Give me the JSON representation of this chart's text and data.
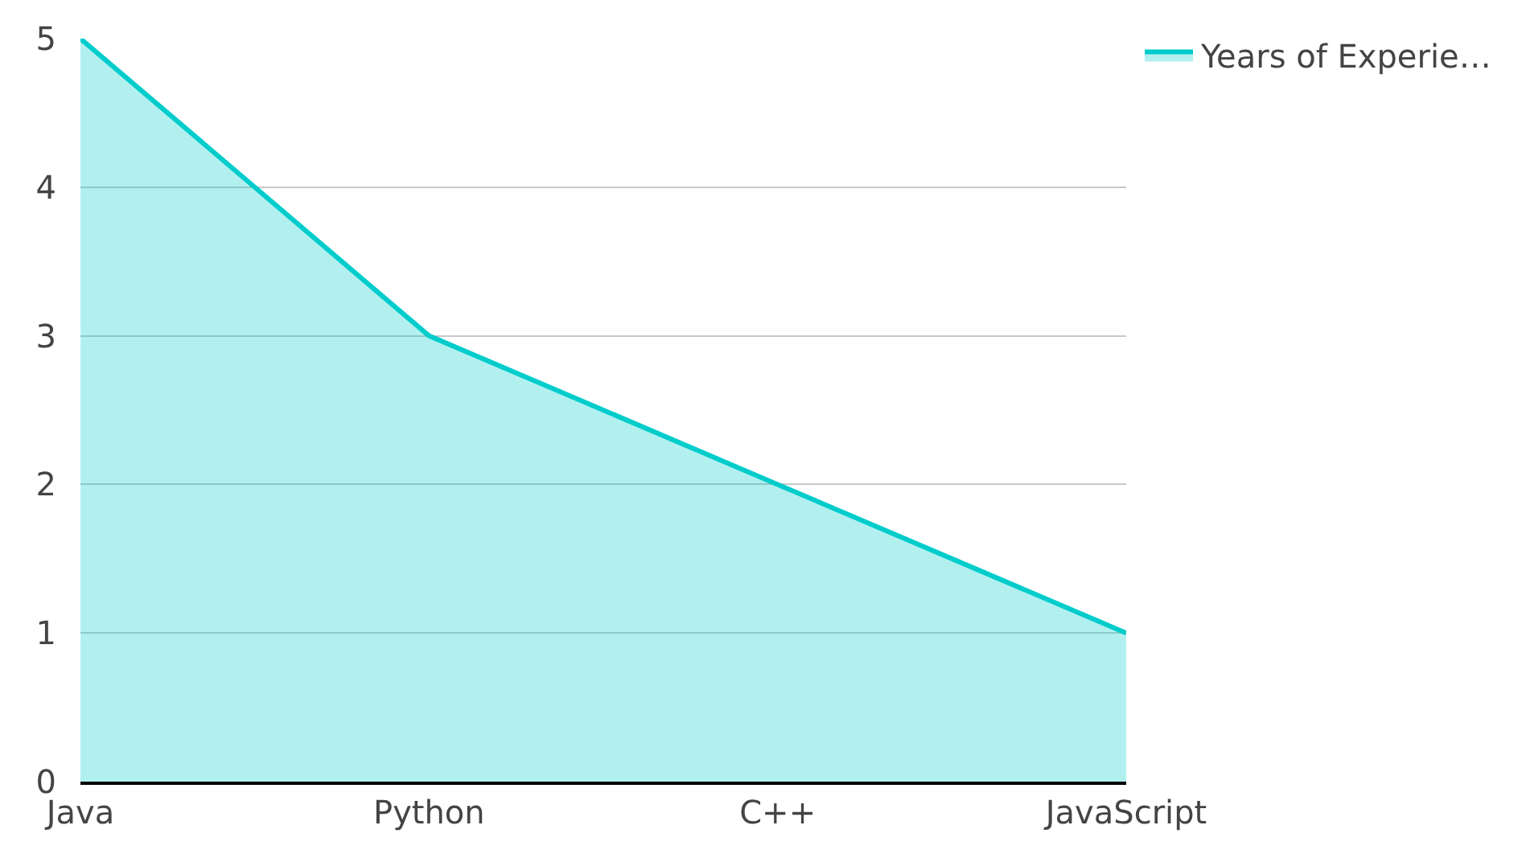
{
  "chart_data": {
    "type": "area",
    "categories": [
      "Java",
      "Python",
      "C++",
      "JavaScript"
    ],
    "series": [
      {
        "name": "Years of Experie…",
        "color": "#00cccc",
        "values": [
          5,
          3,
          2,
          1
        ]
      }
    ],
    "ylim": [
      0,
      5
    ],
    "yticks": [
      0,
      1,
      2,
      3,
      4,
      5
    ],
    "grid": "y",
    "legend": "top right",
    "marker": "none"
  }
}
